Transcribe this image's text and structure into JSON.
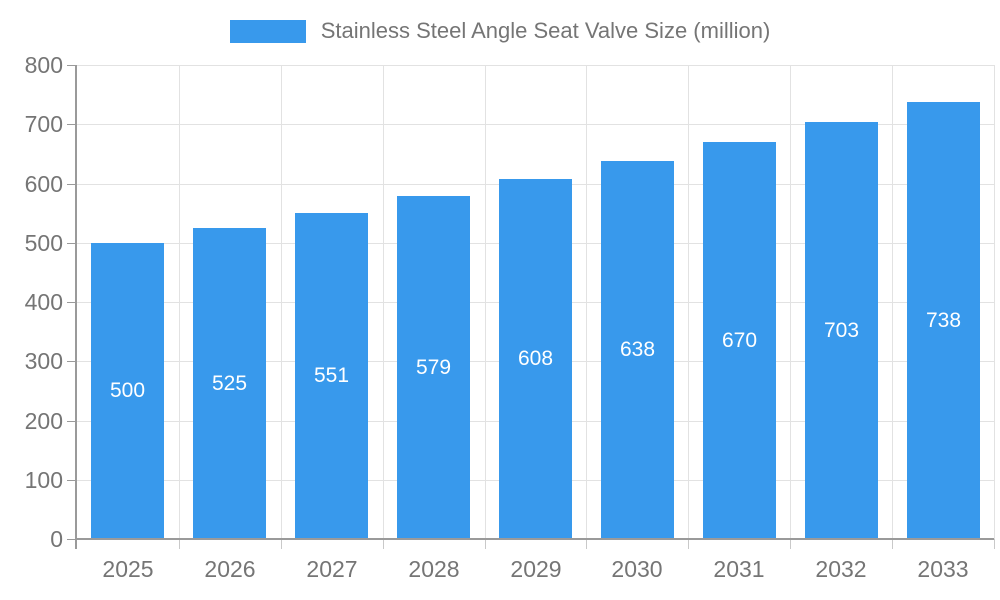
{
  "chart_data": {
    "type": "bar",
    "title": "",
    "legend_label": "Stainless Steel Angle Seat Valve Size (million)",
    "legend_position": "top",
    "categories": [
      "2025",
      "2026",
      "2027",
      "2028",
      "2029",
      "2030",
      "2031",
      "2032",
      "2033"
    ],
    "values": [
      500,
      525,
      551,
      579,
      608,
      638,
      670,
      703,
      738
    ],
    "value_labels": [
      "500",
      "525",
      "551",
      "579",
      "608",
      "638",
      "670",
      "703",
      "738"
    ],
    "xlabel": "",
    "ylabel": "",
    "ylim": [
      0,
      800
    ],
    "y_ticks": [
      "0",
      "100",
      "200",
      "300",
      "400",
      "500",
      "600",
      "700",
      "800"
    ],
    "ytick_step": 100,
    "grid": true,
    "colors": {
      "bar": "#3899EC",
      "bar_value_text": "#FFFFFF",
      "axis_text": "#757575",
      "axis_line": "#9A9A9A",
      "gridline": "#E2E2E2",
      "x_tick": "#C9C9C9",
      "y_tick": "#9A9A9A",
      "background": "#FFFFFF"
    }
  }
}
